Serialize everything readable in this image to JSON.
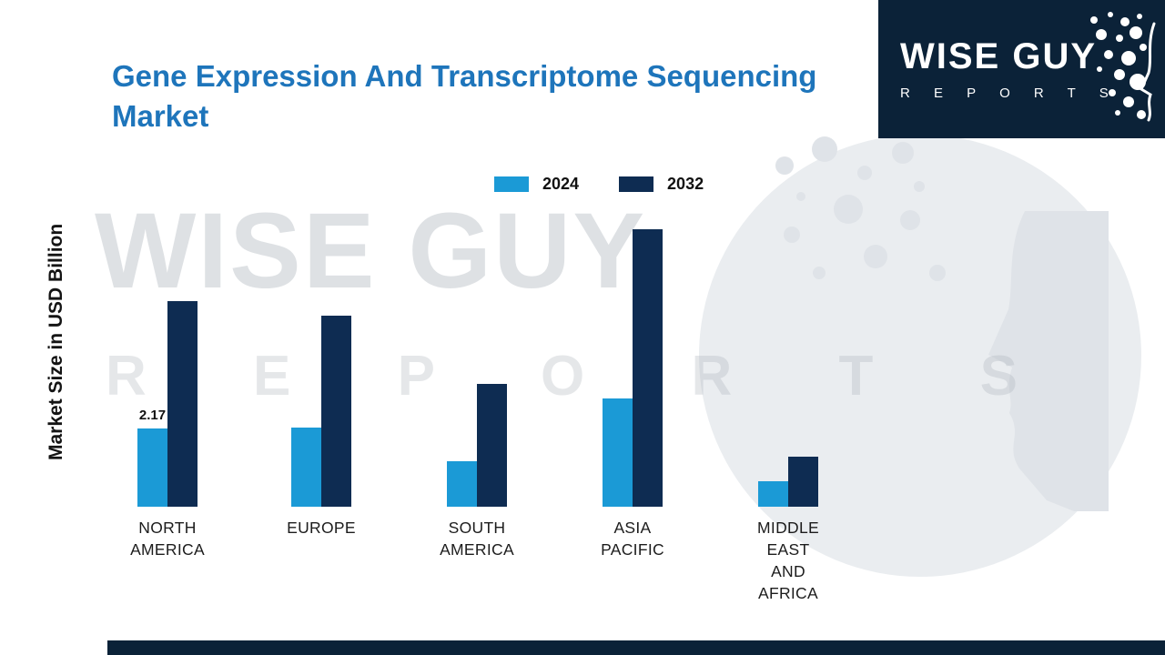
{
  "header": {
    "title": "Gene Expression And Transcriptome Sequencing Market"
  },
  "logo": {
    "line1": "WISE GUY",
    "line2": "R E P O R T S"
  },
  "watermark": {
    "line1": "WISE GUY",
    "line2": "R E P O R T S"
  },
  "brand": {
    "navy": "#0b2238",
    "title_blue": "#1e75bb"
  },
  "chart_data": {
    "type": "bar",
    "title": "Gene Expression And Transcriptome Sequencing Market",
    "xlabel": "",
    "ylabel": "Market Size in USD Billion",
    "categories": [
      "NORTH AMERICA",
      "EUROPE",
      "SOUTH AMERICA",
      "ASIA PACIFIC",
      "MIDDLE EAST AND AFRICA"
    ],
    "series": [
      {
        "name": "2024",
        "color": "#1b9ad6",
        "values": [
          2.17,
          2.2,
          1.25,
          3.0,
          0.7
        ]
      },
      {
        "name": "2032",
        "color": "#0e2c52",
        "values": [
          5.7,
          5.3,
          3.4,
          7.7,
          1.4
        ]
      }
    ],
    "annotations": [
      {
        "text": "2.17",
        "series": "2024",
        "category_index": 0
      }
    ],
    "ylim": [
      0,
      8
    ],
    "grid": false,
    "legend_position": "top"
  }
}
